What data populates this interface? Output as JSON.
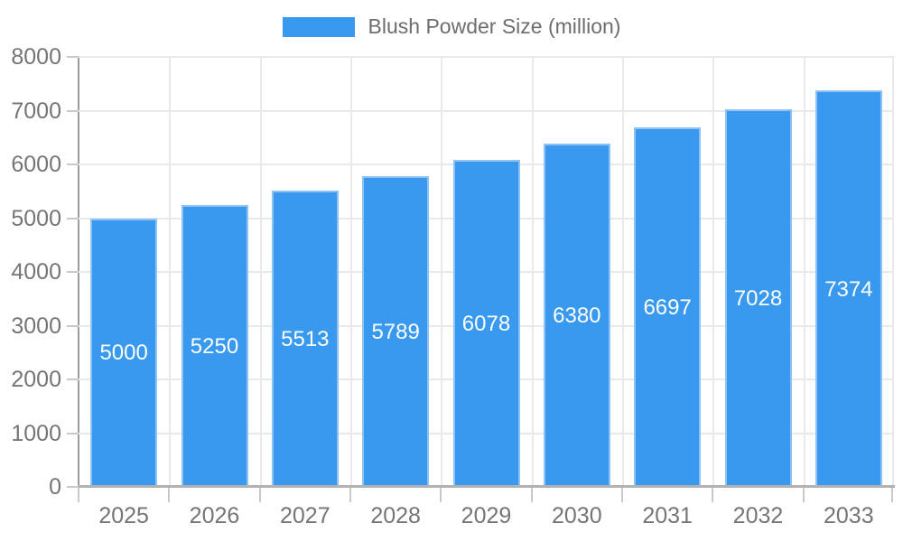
{
  "legend": {
    "swatch_icon": "series-color-swatch",
    "label": "Blush Powder Size (million)"
  },
  "colors": {
    "bar_fill": "#3899ee",
    "bar_edge": "#8ec2f4",
    "gridline": "#e9e9e9",
    "y_axis_line": "#9c9c9c",
    "x_axis_line": "#b2b2b2",
    "tick": "#c9c9c9",
    "axis_label_text": "#757575",
    "legend_text": "#6d6d6d",
    "value_label_text": "#ffffff",
    "background": "#ffffff"
  },
  "chart_data": {
    "type": "bar",
    "title": "",
    "xlabel": "",
    "ylabel": "",
    "categories": [
      "2025",
      "2026",
      "2027",
      "2028",
      "2029",
      "2030",
      "2031",
      "2032",
      "2033"
    ],
    "series": [
      {
        "name": "Blush Powder Size (million)",
        "values": [
          5000,
          5250,
          5513,
          5789,
          6078,
          6380,
          6697,
          7028,
          7374
        ]
      }
    ],
    "value_labels_shown_inside_bars": true,
    "ylim": [
      0,
      8000
    ],
    "ytick_step": 1000,
    "ytick_labels": [
      "0",
      "1000",
      "2000",
      "3000",
      "4000",
      "5000",
      "6000",
      "7000",
      "8000"
    ],
    "grid": true,
    "legend_position": "top-center"
  }
}
